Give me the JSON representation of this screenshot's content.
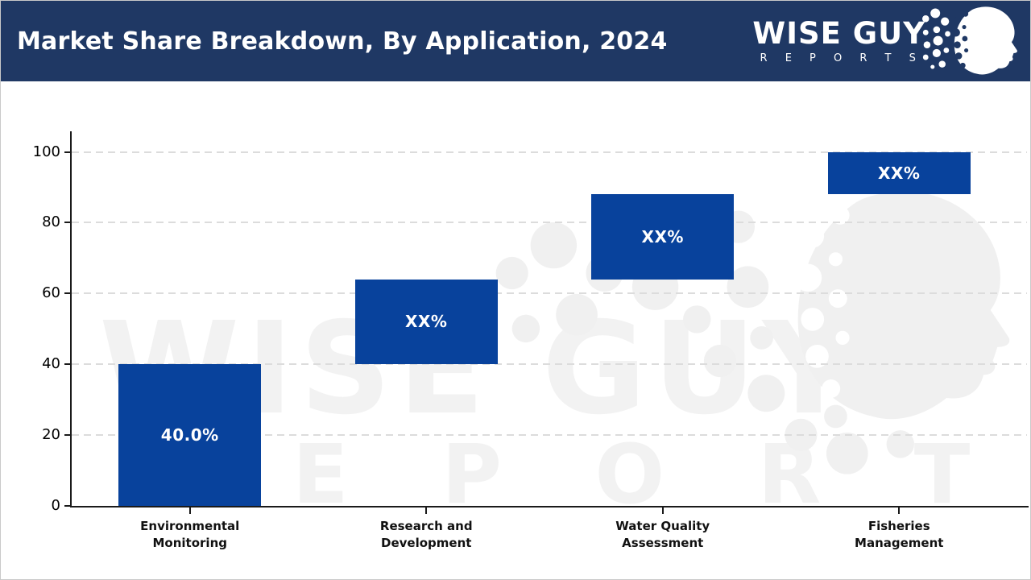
{
  "header": {
    "title": "Market Share Breakdown, By Application, 2024",
    "logo": {
      "name": "WISE GUY",
      "sub": "R E P O R T S"
    }
  },
  "watermark": {
    "line1": "WISE GUY",
    "line2": "R E P O R T S"
  },
  "chart_data": {
    "type": "bar",
    "subtype": "floating-segment waterfall of market share",
    "title": "Market Share Breakdown, By Application, 2024",
    "categories": [
      "Environmental Monitoring",
      "Research and Development",
      "Water Quality Assessment",
      "Fisheries Management"
    ],
    "category_label_lines": [
      [
        "Environmental",
        "Monitoring"
      ],
      [
        "Research and",
        "Development"
      ],
      [
        "Water Quality",
        "Assessment"
      ],
      [
        "Fisheries",
        "Management"
      ]
    ],
    "segments": [
      {
        "category": "Environmental Monitoring",
        "start": 0,
        "end": 40,
        "label": "40.0%"
      },
      {
        "category": "Research and Development",
        "start": 40,
        "end": 64,
        "label": "XX%"
      },
      {
        "category": "Water Quality Assessment",
        "start": 64,
        "end": 88,
        "label": "XX%"
      },
      {
        "category": "Fisheries Management",
        "start": 88,
        "end": 100,
        "label": "XX%"
      }
    ],
    "xlabel": "",
    "ylabel": "",
    "ylim": [
      0,
      105
    ],
    "yticks": [
      0,
      20,
      40,
      60,
      80,
      100
    ],
    "grid": "horizontal dashed",
    "legend": null,
    "bar_color": "#08429c",
    "value_label_color": "#ffffff"
  },
  "colors": {
    "header_bg": "#1f3864",
    "bar": "#08429c",
    "grid": "#dcdcdc",
    "axis": "#1a1a1a",
    "watermark": "#f2f2f2"
  }
}
